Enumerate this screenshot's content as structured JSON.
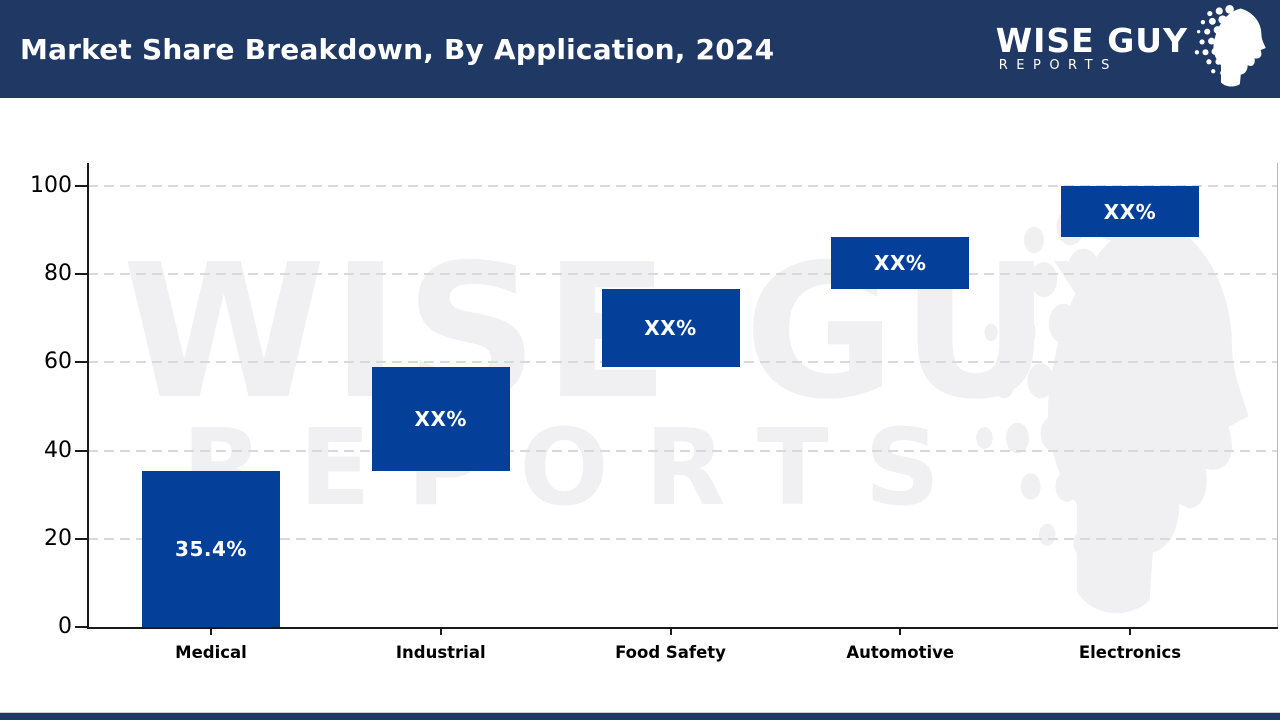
{
  "header": {
    "title": "Market Share Breakdown, By Application, 2024",
    "logo": {
      "line1": "WISE GUY",
      "line2": "REPORTS"
    }
  },
  "watermark": {
    "line1": "WISE GUY",
    "line2": "REPORTS"
  },
  "colors": {
    "header_bg": "#1f3864",
    "footer_bg": "#1f3864",
    "bar": "#04409a",
    "bar_label_text": "#ffffff",
    "gridline": "#d9d9d9",
    "axis": "#1a1a1a",
    "watermark": "#f0f0f3"
  },
  "chart_data": {
    "type": "bar",
    "subtype": "waterfall",
    "title": "Market Share Breakdown, By Application, 2024",
    "categories": [
      "Medical",
      "Industrial",
      "Food Safety",
      "Automotive",
      "Electronics"
    ],
    "series": [
      {
        "name": "Market share (%)",
        "segments": [
          {
            "category": "Medical",
            "start": 0,
            "end": 35.4,
            "label": "35.4%"
          },
          {
            "category": "Industrial",
            "start": 35.4,
            "end": 59.0,
            "label": "XX%"
          },
          {
            "category": "Food Safety",
            "start": 59.0,
            "end": 76.6,
            "label": "XX%"
          },
          {
            "category": "Automotive",
            "start": 76.6,
            "end": 88.4,
            "label": "XX%"
          },
          {
            "category": "Electronics",
            "start": 88.4,
            "end": 100,
            "label": "XX%"
          }
        ]
      }
    ],
    "xlabel": "",
    "ylabel": "",
    "ylim": [
      0,
      100
    ],
    "yticks": [
      0,
      20,
      40,
      60,
      80,
      100
    ],
    "grid": "horizontal-dashed",
    "legend": "none",
    "bar_color": "#04409a"
  }
}
